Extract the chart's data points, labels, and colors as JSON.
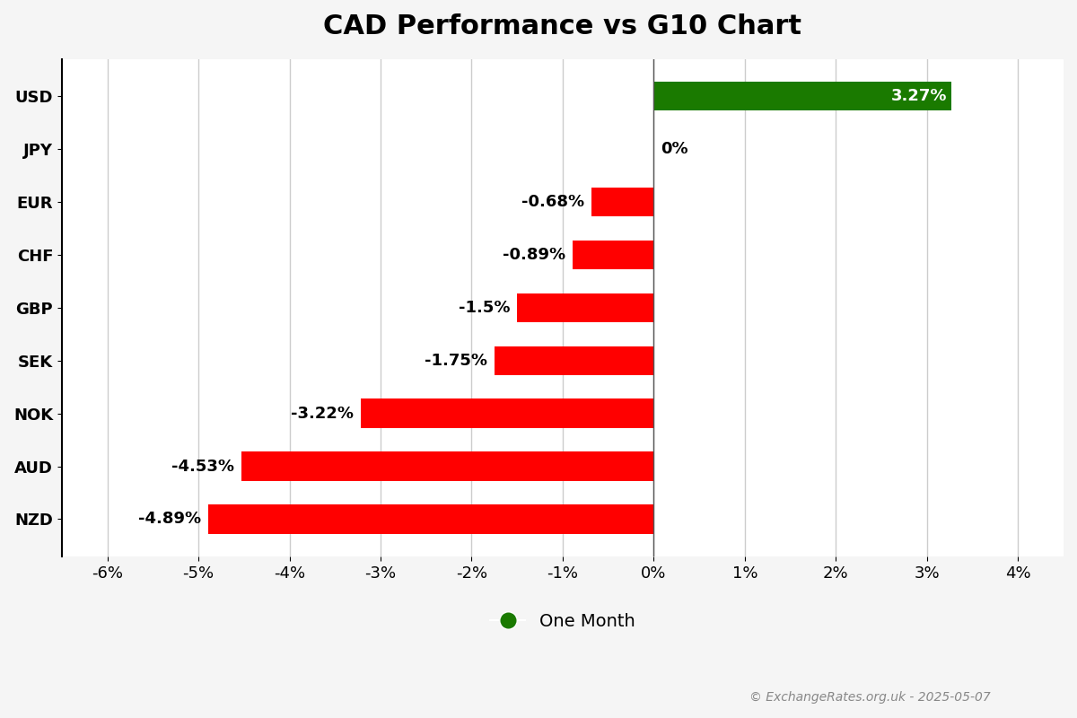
{
  "title": "CAD Performance vs G10 Chart",
  "currencies": [
    "USD",
    "JPY",
    "EUR",
    "CHF",
    "GBP",
    "SEK",
    "NOK",
    "AUD",
    "NZD"
  ],
  "values": [
    3.27,
    0.0,
    -0.68,
    -0.89,
    -1.5,
    -1.75,
    -3.22,
    -4.53,
    -4.89
  ],
  "labels": [
    "3.27%",
    "0%",
    "-0.68%",
    "-0.89%",
    "-1.5%",
    "-1.75%",
    "-3.22%",
    "-4.53%",
    "-4.89%"
  ],
  "bar_colors": [
    "#1a7a00",
    "#ff0000",
    "#ff0000",
    "#ff0000",
    "#ff0000",
    "#ff0000",
    "#ff0000",
    "#ff0000",
    "#ff0000"
  ],
  "xlim": [
    -6.5,
    4.5
  ],
  "xticks": [
    -6,
    -5,
    -4,
    -3,
    -2,
    -1,
    0,
    1,
    2,
    3,
    4
  ],
  "xtick_labels": [
    "-6%",
    "-5%",
    "-4%",
    "-3%",
    "-2%",
    "-1%",
    "0%",
    "1%",
    "2%",
    "3%",
    "4%"
  ],
  "background_color": "#f5f5f5",
  "plot_background": "#ffffff",
  "grid_color": "#cccccc",
  "title_fontsize": 22,
  "label_fontsize": 13,
  "tick_fontsize": 13,
  "bar_height": 0.55,
  "legend_label": "One Month",
  "legend_color": "#1a7a00",
  "copyright_text": "© ExchangeRates.org.uk - 2025-05-07",
  "label_color_positive": "#ffffff",
  "label_color_negative": "#000000"
}
